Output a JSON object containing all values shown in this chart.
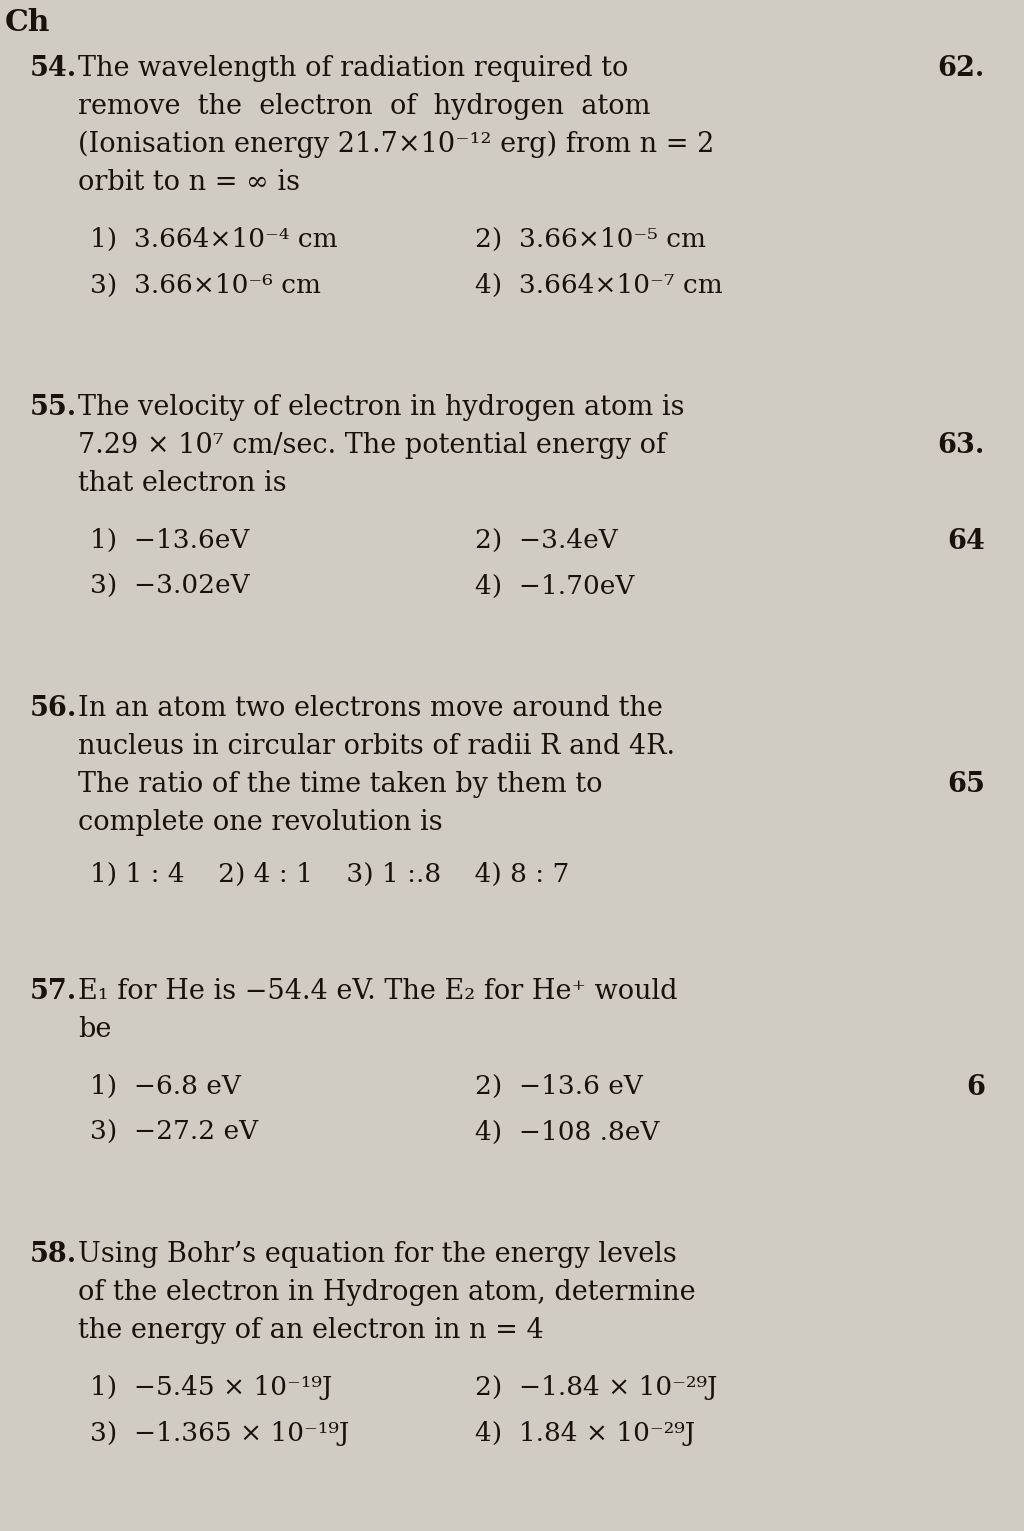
{
  "bg_color": "#d0ccc4",
  "text_color": "#1a1208",
  "q54_number": "54.",
  "q54_lines": [
    "The wavelength of radiation required to",
    "remove  the  electron  of  hydrogen  atom",
    "(Ionisation energy 21.7×10⁻¹² erg) from n = 2",
    "orbit to n = ∞ is"
  ],
  "q54_opt1": "1)  3.664×10⁻⁴ cm",
  "q54_opt2": "2)  3.66×10⁻⁵ cm",
  "q54_opt3": "3)  3.66×10⁻⁶ cm",
  "q54_opt4": "4)  3.664×10⁻⁷ cm",
  "q54_side": "62.",
  "q55_number": "55.",
  "q55_lines": [
    "The velocity of electron in hydrogen atom is",
    "7.29 × 10⁷ cm/sec. The potential energy of",
    "that electron is"
  ],
  "q55_opt1": "1)  −13.6eV",
  "q55_opt2": "2)  −3.4eV",
  "q55_opt3": "3)  −3.02eV",
  "q55_opt4": "4)  −1.70eV",
  "q55_side1": "63.",
  "q55_side2": "64",
  "q56_number": "56.",
  "q56_lines": [
    "In an atom two electrons move around the",
    "nucleus in circular orbits of radii R and 4R.",
    "The ratio of the time taken by them to",
    "complete one revolution is"
  ],
  "q56_opts": "1) 1 : 4    2) 4 : 1    3) 1 :.8    4) 8 : 7",
  "q56_side": "65",
  "q57_number": "57.",
  "q57_lines": [
    "E₁ for He is −54.4 eV. The E₂ for He⁺ would",
    "be"
  ],
  "q57_opt1": "1)  −6.8 eV",
  "q57_opt2": "2)  −13.6 eV",
  "q57_opt3": "3)  −27.2 eV",
  "q57_opt4": "4)  −108 .8eV",
  "q57_side": "6",
  "q58_number": "58.",
  "q58_lines": [
    "Using Bohr’s equation for the energy levels",
    "of the electron in Hydrogen atom, determine",
    "the energy of an electron in n = 4"
  ],
  "q58_opt1": "1)  −5.45 × 10⁻¹⁹J",
  "q58_opt2": "2)  −1.84 × 10⁻²⁹J",
  "q58_opt3": "3)  −1.365 × 10⁻¹⁹J",
  "q58_opt4": "4)  1.84 × 10⁻²⁹J",
  "top_text": "Ch",
  "fontsize": 19.5,
  "fontsize_opt": 19.0
}
